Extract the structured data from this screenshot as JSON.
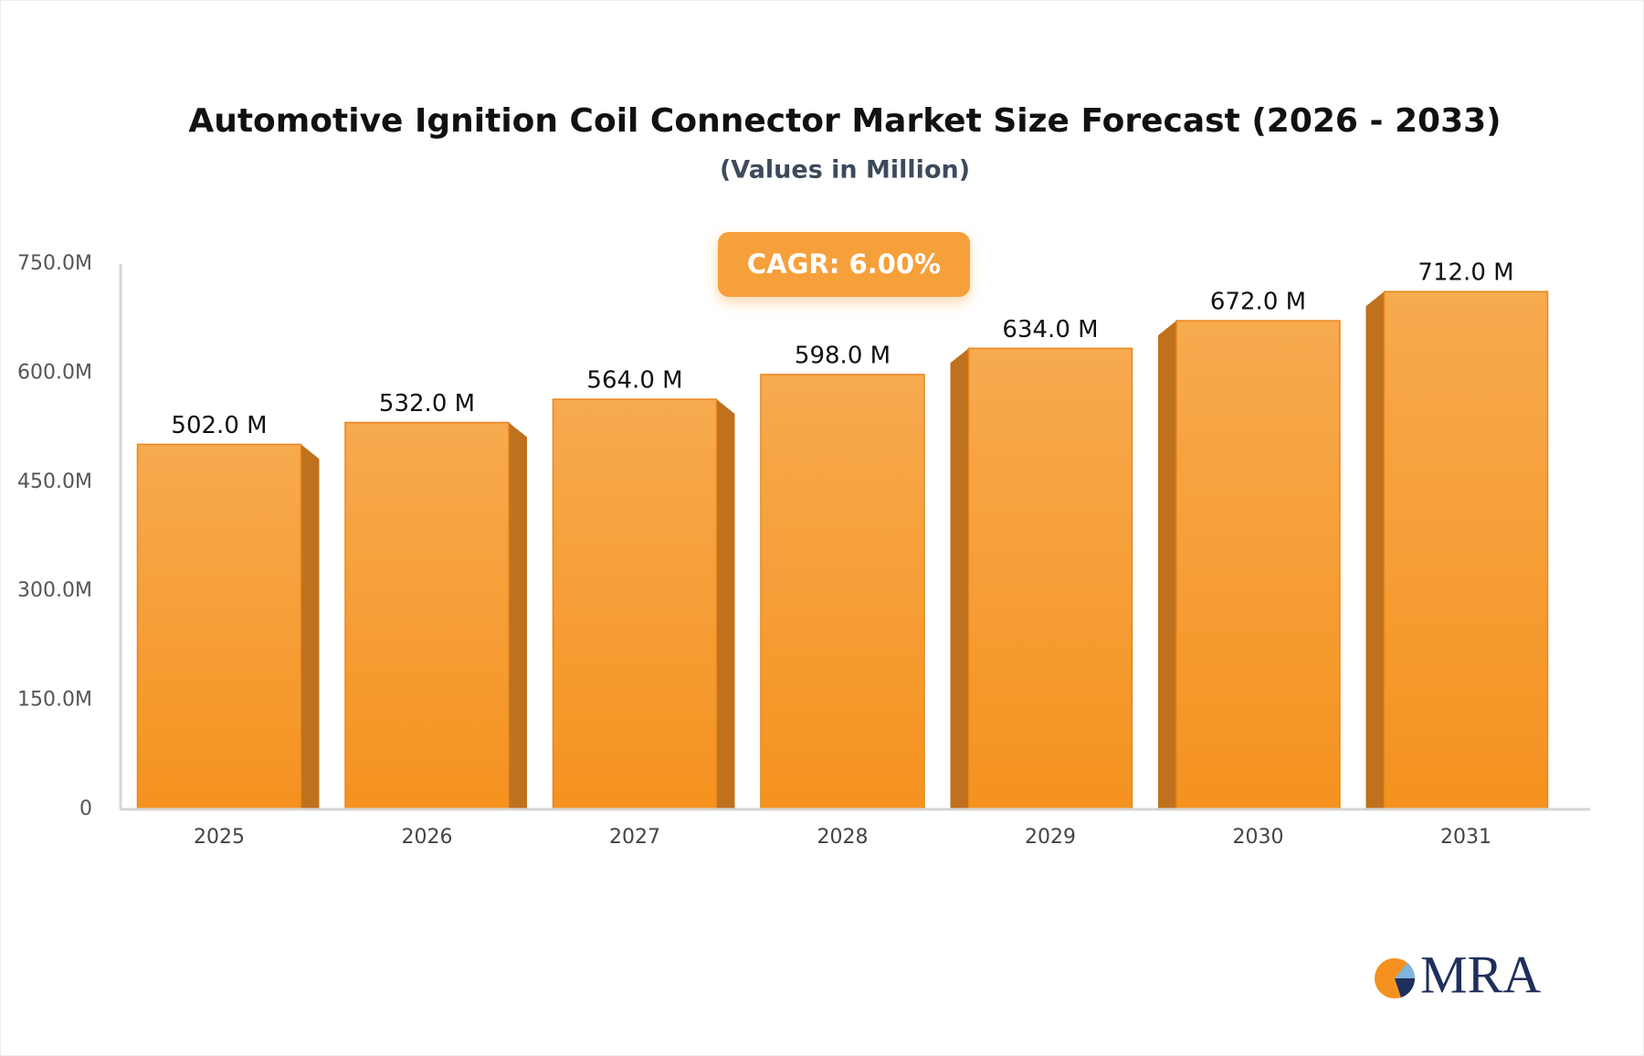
{
  "chart_data": {
    "type": "bar",
    "title": "Automotive Ignition Coil Connector Market Size Forecast (2026 - 2033)",
    "subtitle": "(Values in Million)",
    "annotation": "CAGR: 6.00%",
    "logo": "MRA",
    "categories": [
      "2025",
      "2026",
      "2027",
      "2028",
      "2029",
      "2030",
      "2031"
    ],
    "values": [
      502,
      532,
      564,
      598,
      634,
      672,
      712
    ],
    "value_labels": [
      "502.0 M",
      "532.0 M",
      "564.0 M",
      "598.0 M",
      "634.0 M",
      "672.0 M",
      "712.0 M"
    ],
    "color": "#f6a03a",
    "ylim": [
      0,
      750
    ],
    "yticks": [
      0,
      {
        "value": 150,
        "label": "150.0M"
      },
      {
        "value": 300,
        "label": "300.0M"
      },
      {
        "value": 450,
        "label": "450.0M"
      },
      {
        "value": 600,
        "label": "600.0M"
      },
      {
        "value": 750,
        "label": "750.0M"
      }
    ],
    "grid": false
  }
}
